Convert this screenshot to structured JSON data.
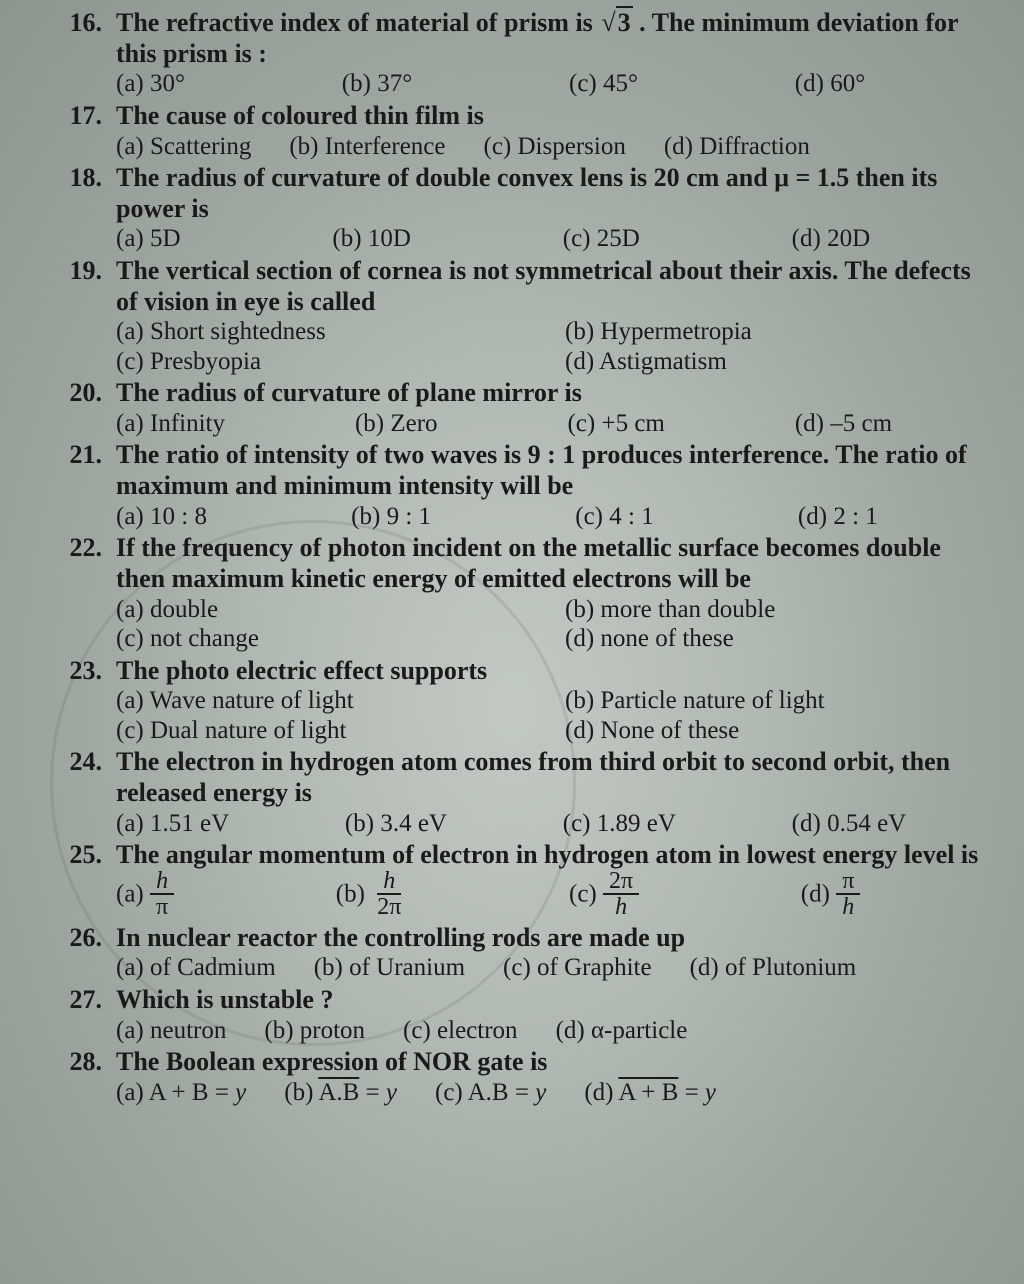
{
  "questions": [
    {
      "n": "16.",
      "stem_html": "The refractive index of material of prism is <span class='sqrt'><span class='rad'>3</span></span> . The minimum deviation for this prism is :",
      "opts": [
        "(a) 30°",
        "(b) 37°",
        "(c) 45°",
        "(d) 60°"
      ],
      "layout": "opts4"
    },
    {
      "n": "17.",
      "stem_html": "The cause of coloured thin film is",
      "opts": [
        "(a) Scattering",
        "(b) Interference",
        "(c) Dispersion",
        "(d) Diffraction"
      ],
      "layout": "opts"
    },
    {
      "n": "18.",
      "stem_html": "The radius of curvature of double convex lens is 20 cm and μ = 1.5 then its power is",
      "opts": [
        "(a) 5D",
        "(b) 10D",
        "(c) 25D",
        "(d) 20D"
      ],
      "layout": "opts4"
    },
    {
      "n": "19.",
      "stem_html": "The vertical section of cornea is not symmetrical about their axis. The defects of vision in eye is called",
      "opts": [
        "(a) Short sightedness",
        "(b) Hypermetropia",
        "(c) Presbyopia",
        "(d) Astigmatism"
      ],
      "layout": "opts2"
    },
    {
      "n": "20.",
      "stem_html": "The radius of curvature of plane mirror is",
      "opts": [
        "(a) Infinity",
        "(b) Zero",
        "(c) +5 cm",
        "(d) –5 cm"
      ],
      "layout": "opts4"
    },
    {
      "n": "21.",
      "stem_html": "The ratio of intensity of two waves is 9 : 1 produces interference. The ratio of maximum and minimum intensity will be",
      "opts": [
        "(a) 10 : 8",
        "(b) 9 : 1",
        "(c) 4 : 1",
        "(d) 2 : 1"
      ],
      "layout": "opts4"
    },
    {
      "n": "22.",
      "stem_html": "If the frequency of photon incident on the metallic surface becomes double then maximum kinetic energy of emitted electrons will be",
      "opts": [
        "(a) double",
        "(b) more than double",
        "(c) not change",
        "(d) none of these"
      ],
      "layout": "opts2"
    },
    {
      "n": "23.",
      "stem_html": "The photo electric effect supports",
      "opts": [
        "(a) Wave nature of light",
        "(b) Particle nature of light",
        "(c) Dual nature of light",
        "(d) None of these"
      ],
      "layout": "opts2"
    },
    {
      "n": "24.",
      "stem_html": "The electron in hydrogen atom comes from third orbit to second orbit, then released energy is",
      "opts": [
        "(a) 1.51 eV",
        "(b) 3.4 eV",
        "(c) 1.89 eV",
        "(d) 0.54 eV"
      ],
      "layout": "opts4"
    },
    {
      "n": "25.",
      "stem_html": "The angular momentum of electron in hydrogen atom in lowest energy level is",
      "opts_html": [
        "(a) <span class='frac'><span class='n'><i>h</i></span><span class='d'>π</span></span>",
        "(b) <span class='frac'><span class='n'><i>h</i></span><span class='d'>2π</span></span>",
        "(c) <span class='frac'><span class='n'>2π</span><span class='d'><i>h</i></span></span>",
        "(d) <span class='frac'><span class='n'>π</span><span class='d'><i>h</i></span></span>"
      ],
      "layout": "opts4"
    },
    {
      "n": "26.",
      "stem_html": "In nuclear reactor the controlling rods are made up",
      "opts": [
        "(a) of Cadmium",
        "(b) of Uranium",
        "(c) of Graphite",
        "(d) of Plutonium"
      ],
      "layout": "opts"
    },
    {
      "n": "27.",
      "stem_html": "Which is unstable ?",
      "opts": [
        "(a) neutron",
        "(b) proton",
        "(c) electron",
        "(d) α-particle"
      ],
      "layout": "opts"
    },
    {
      "n": "28.",
      "stem_html": "The Boolean expression of NOR gate is",
      "opts_html": [
        "(a) A + B = <i>y</i>",
        "(b) <span class='over'>A.B</span> = <i>y</i>",
        "(c) A.B = <i>y</i>",
        "(d) <span class='over'>A + B</span> = <i>y</i>"
      ],
      "layout": "opts"
    }
  ]
}
